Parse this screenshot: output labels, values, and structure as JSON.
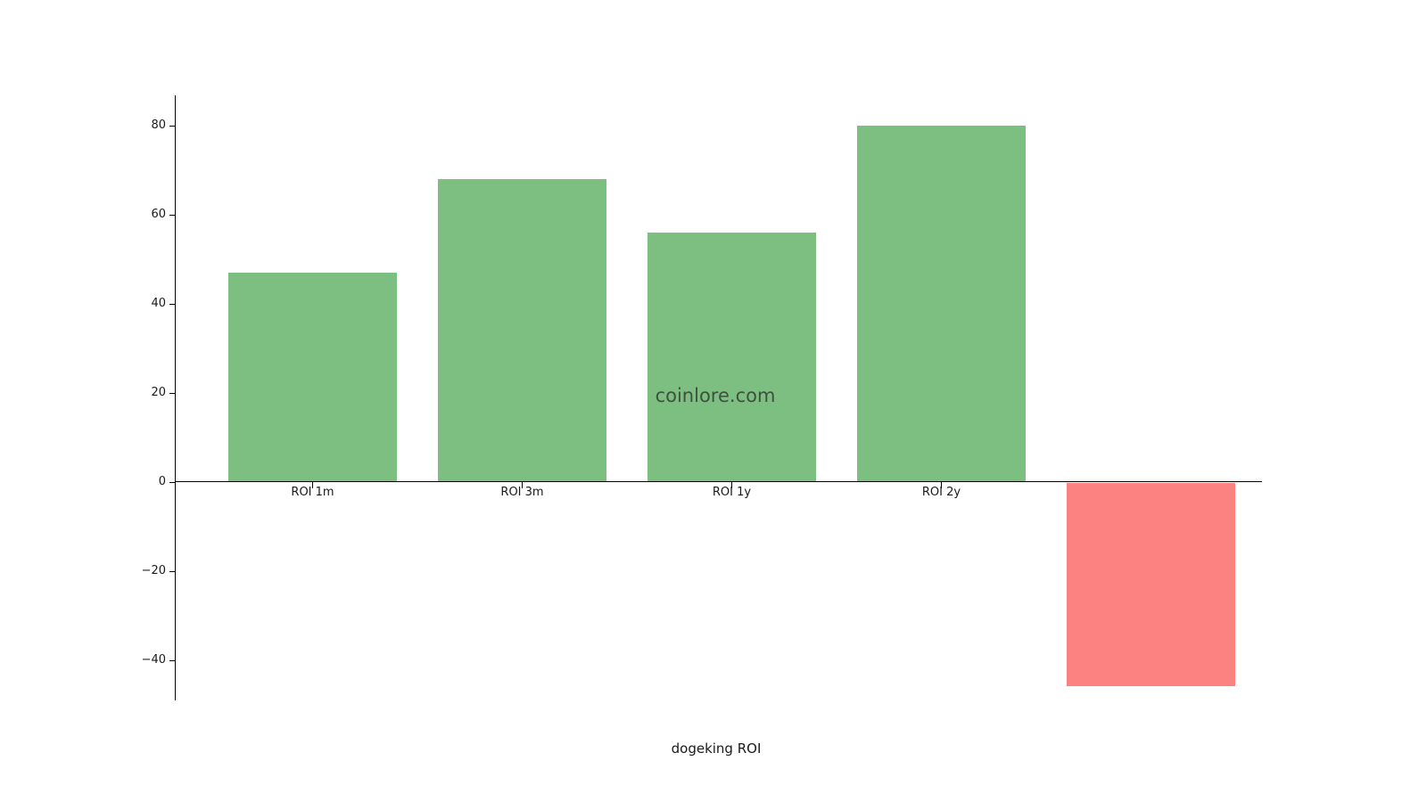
{
  "chart_data": {
    "type": "bar",
    "title": "dogeking ROI",
    "watermark": "coinlore.com",
    "categories": [
      "ROI 1m",
      "ROI 3m",
      "ROI 1y",
      "ROI 2y",
      ""
    ],
    "values": [
      47,
      68,
      56,
      80,
      -45.5
    ],
    "positive_color": "#7dbf80",
    "negative_color": "#fc8181",
    "ytick_labels": [
      "80",
      "60",
      "40",
      "20",
      "0",
      "−20",
      "−40"
    ],
    "ytick_values": [
      80,
      60,
      40,
      20,
      0,
      -20,
      -40
    ],
    "ylim": [
      -49,
      87
    ],
    "xlabel": "",
    "ylabel": "",
    "grid": false,
    "legend": "none",
    "axis_color": "#000000",
    "text_color": "#1a1a1a"
  }
}
